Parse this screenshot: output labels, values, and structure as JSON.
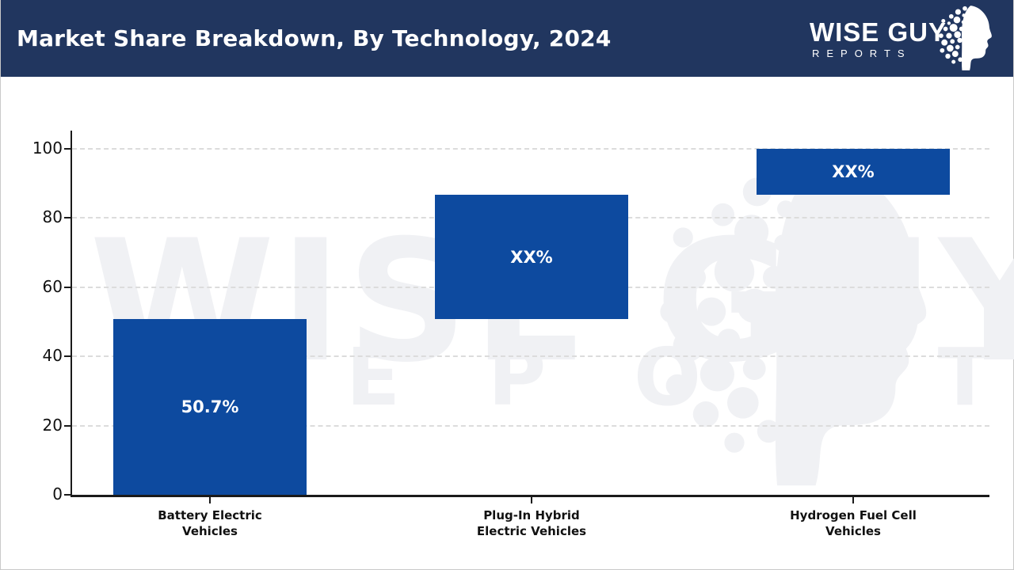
{
  "header": {
    "title": "Market Share Breakdown, By Technology, 2024",
    "logo": {
      "line1": "WISE GUY",
      "line2": "REPORTS"
    }
  },
  "watermark": {
    "line1": "WISE GUY",
    "line2": "R E P O R T S"
  },
  "colors": {
    "header_bg": "#21365f",
    "bar": "#0d4a9f",
    "bar_label": "#ffffff",
    "grid": "#dcdcdc",
    "axis": "#1a1a1a",
    "watermark": "#f0f1f4"
  },
  "chart_data": {
    "type": "bar",
    "subtype": "floating-stacked-percent",
    "title": "Market Share Breakdown, By Technology, 2024",
    "categories": [
      [
        "Battery Electric",
        "Vehicles"
      ],
      [
        "Plug-In Hybrid",
        "Electric Vehicles"
      ],
      [
        "Hydrogen Fuel Cell",
        "Vehicles"
      ]
    ],
    "bars": [
      {
        "category": "Battery Electric Vehicles",
        "start": 0,
        "end": 50.7,
        "label": "50.7%"
      },
      {
        "category": "Plug-In Hybrid Electric Vehicles",
        "start": 50.7,
        "end": 86.6,
        "label": "XX%"
      },
      {
        "category": "Hydrogen Fuel Cell Vehicles",
        "start": 86.6,
        "end": 100,
        "label": "XX%"
      }
    ],
    "ylim": [
      0,
      100
    ],
    "yticks": [
      0,
      20,
      40,
      60,
      80,
      100
    ],
    "xlabel": "",
    "ylabel": "",
    "grid": "horizontal-dashed",
    "legend": "none"
  }
}
